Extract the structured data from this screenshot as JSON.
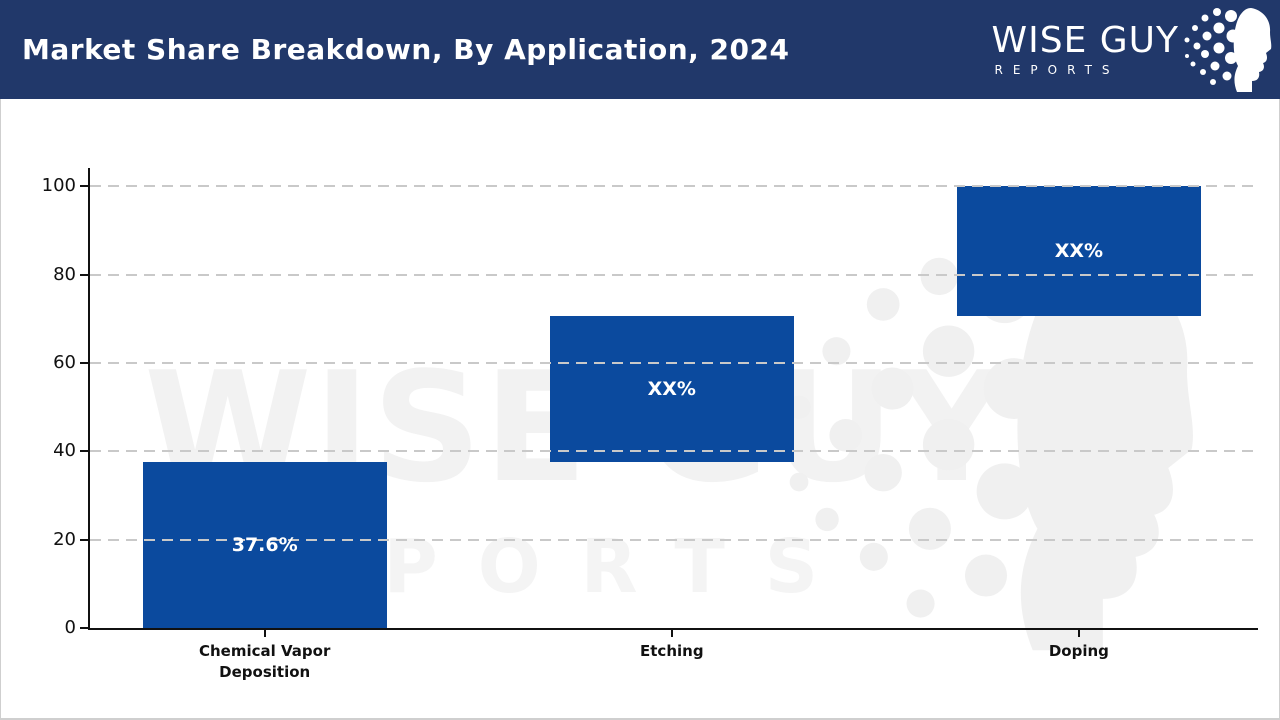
{
  "header": {
    "title": "Market Share Breakdown, By Application, 2024",
    "bg_color": "#21386a",
    "logo": {
      "line1": "WISE GUY",
      "line2": "REPORTS"
    }
  },
  "watermark": {
    "line1": "WISE GUY",
    "line2": "REPORTS"
  },
  "chart_data": {
    "type": "bar",
    "subtype": "floating-waterfall-segments",
    "title": "Market Share Breakdown, By Application, 2024",
    "categories": [
      "Chemical Vapor\nDeposition",
      "Etching",
      "Doping"
    ],
    "segments": [
      {
        "category": "Chemical Vapor Deposition",
        "start": 0,
        "end": 37.6,
        "label": "37.6%"
      },
      {
        "category": "Etching",
        "start": 37.6,
        "end": 70.6,
        "label": "XX%"
      },
      {
        "category": "Doping",
        "start": 70.6,
        "end": 100,
        "label": "XX%"
      }
    ],
    "yticks": [
      0,
      20,
      40,
      60,
      80,
      100
    ],
    "ylim": [
      0,
      104
    ],
    "xlabel": "",
    "ylabel": "",
    "legend": "none",
    "grid": "horizontal dashed gridlines drawn over bars",
    "bar_color": "#0b4a9e",
    "bar_label_color": "#ffffff",
    "axis_color": "#111111",
    "gridline_color": "#c9c9c9"
  }
}
